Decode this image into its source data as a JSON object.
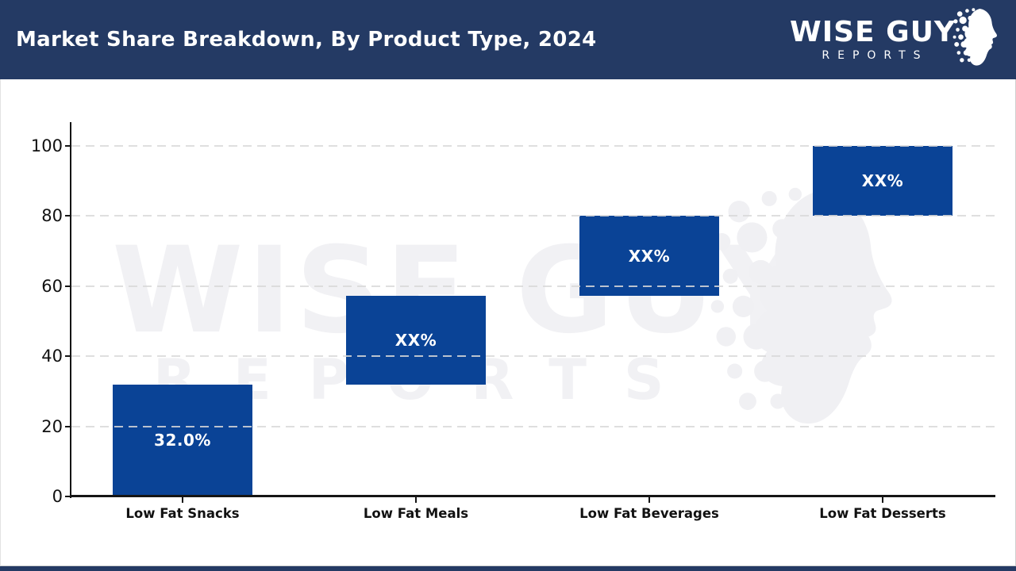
{
  "header": {
    "title": "Market Share Breakdown, By Product Type, 2024"
  },
  "brand": {
    "name": "WISE GUY",
    "subtitle": "REPORTS"
  },
  "watermark": {
    "line1": "WISE GUY",
    "line2": "REPORTS"
  },
  "colors": {
    "header_bg": "#243a64",
    "footer_bg": "#243a64",
    "bar": "#0a4396",
    "bar_label": "#ffffff",
    "grid": "#dcdcdc",
    "axis": "#151515",
    "watermark": "#f1f1f4"
  },
  "chart_data": {
    "type": "bar",
    "subtype": "waterfall",
    "title": "Market Share Breakdown, By Product Type, 2024",
    "categories": [
      "Low Fat Snacks",
      "Low Fat Meals",
      "Low Fat Beverages",
      "Low Fat Desserts"
    ],
    "segments": [
      {
        "category": "Low Fat Snacks",
        "start": 0,
        "end": 32,
        "value_label": "32.0%"
      },
      {
        "category": "Low Fat Meals",
        "start": 32,
        "end": 57.2,
        "value_label": "XX%"
      },
      {
        "category": "Low Fat Beverages",
        "start": 57.2,
        "end": 80,
        "value_label": "XX%"
      },
      {
        "category": "Low Fat Desserts",
        "start": 80,
        "end": 100,
        "value_label": "XX%"
      }
    ],
    "xlabel": "",
    "ylabel": "",
    "yticks": [
      0,
      20,
      40,
      60,
      80,
      100
    ],
    "ylim": [
      0,
      100
    ],
    "grid": "horizontal-dashed",
    "legend": "none",
    "bar_color": "#0a4396",
    "bar_label_color": "#ffffff"
  }
}
